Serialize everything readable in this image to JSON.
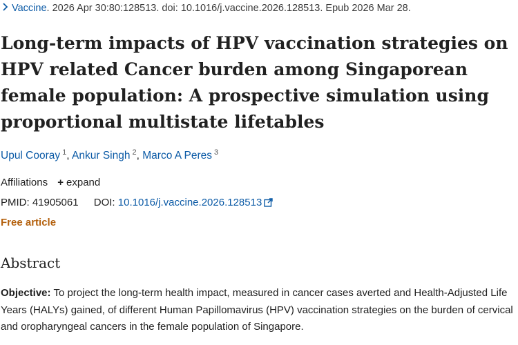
{
  "citation": {
    "journal": "Vaccine",
    "details": ". 2026 Apr 30:80:128513. doi: 10.1016/j.vaccine.2026.128513. Epub 2026 Mar 28."
  },
  "title": "Long-term impacts of HPV vaccination strategies on HPV related Cancer burden among Singaporean female population: A prospective simulation using proportional multistate lifetables",
  "authors": [
    {
      "name": "Upul Cooray",
      "sup": "1"
    },
    {
      "name": "Ankur Singh",
      "sup": "2"
    },
    {
      "name": "Marco A Peres",
      "sup": "3"
    }
  ],
  "author_separator": ", ",
  "affiliations": {
    "label": "Affiliations",
    "expand_label": "expand"
  },
  "identifiers": {
    "pmid_label": "PMID:",
    "pmid": "41905061",
    "doi_label": "DOI:",
    "doi": "10.1016/j.vaccine.2026.128513"
  },
  "free_article": "Free article",
  "abstract": {
    "heading": "Abstract",
    "objective_label": "Objective:",
    "objective_text": "To project the long-term health impact, measured in cancer cases averted and Health-Adjusted Life Years (HALYs) gained, of different Human Papillomavirus (HPV) vaccination strategies on the burden of cervical and oropharyngeal cancers in the female population of Singapore."
  },
  "icons": {
    "chevron": "chevron-right-icon",
    "external_link": "external-link-icon",
    "plus": "plus-icon"
  },
  "colors": {
    "link": "#0b5aa6",
    "free_article": "#b4610e",
    "text": "#212121"
  }
}
